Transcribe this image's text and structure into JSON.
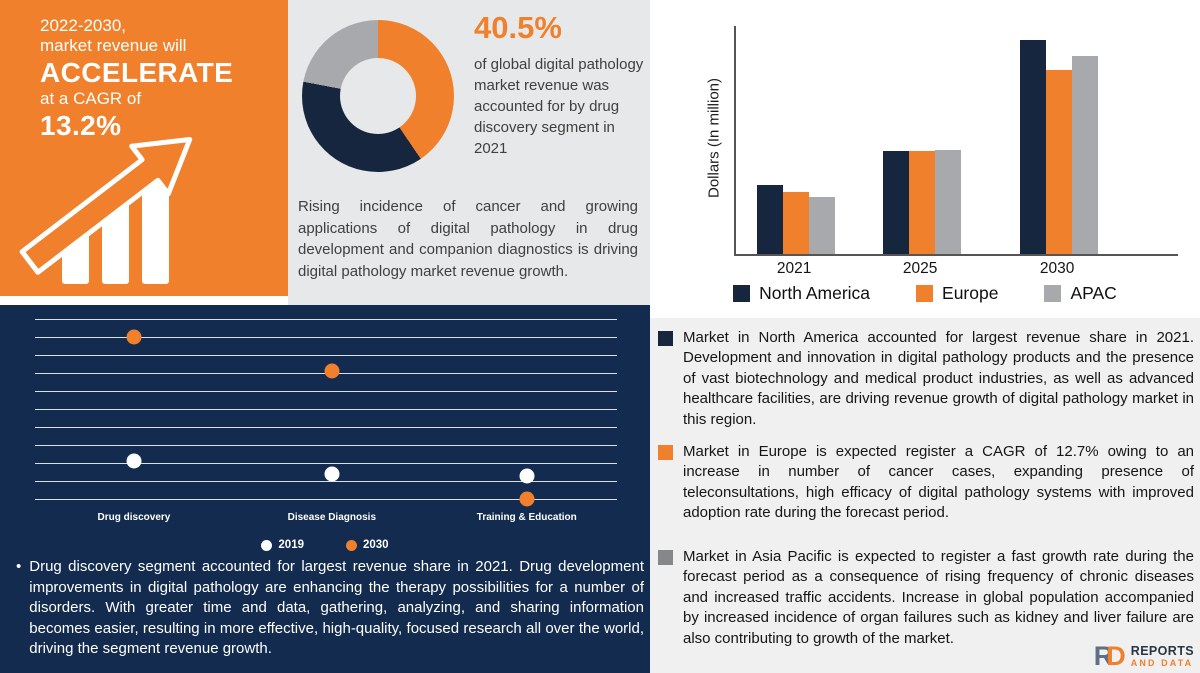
{
  "colors": {
    "orange": "#F0802B",
    "navy": "#16263E",
    "panel_navy": "#122B4E",
    "gray": "#A7A9AC",
    "gray_dark": "#85878B",
    "light_gray": "#E7E8E9",
    "panel_bottom_right": "#F0F0F1",
    "white": "#FFFFFF"
  },
  "top_left": {
    "line1": "2022-2030,",
    "line2": "market revenue will",
    "accelerate": "ACCELERATE",
    "line3": "at a CAGR of",
    "cagr": "13.2%"
  },
  "donut_section": {
    "stat": "40.5%",
    "stat_caption": "of global digital pathology market revenue was accounted for by drug discovery segment in 2021",
    "paragraph": "Rising incidence of cancer and growing applications of digital pathology in drug development and companion diagnostics is driving digital pathology market revenue growth."
  },
  "dot_section": {
    "bullet": "Drug discovery segment accounted for largest revenue share in 2021.  Drug development improvements in digital pathology are enhancing the therapy possibilities for a number of disorders. With greater time and data, gathering, analyzing, and sharing information becomes easier, resulting in more effective, high-quality, focused research all over the world, driving the segment revenue growth."
  },
  "right_bullets": [
    {
      "color_key": "navy",
      "text": "Market in North America accounted for largest revenue share in 2021. Development and innovation in digital pathology products and the presence of vast biotechnology and medical product industries, as well as advanced healthcare facilities, are driving revenue growth of digital pathology market in this region."
    },
    {
      "color_key": "orange",
      "text": "Market in Europe is expected register a CAGR of 12.7% owing to an increase in number of cancer cases, expanding presence of teleconsultations, high efficacy of digital pathology systems with improved adoption rate during the forecast period."
    },
    {
      "color_key": "gray_dark",
      "text": "Market in Asia Pacific is expected to register a fast growth rate during the forecast period as a consequence of rising frequency of chronic diseases and increased traffic accidents. Increase in global population accompanied by increased incidence of organ failures such as kidney and liver failure are also contributing to growth of the market."
    }
  ],
  "logo": {
    "mark_r": "R",
    "mark_d": "D",
    "line1": "REPORTS",
    "line2": "AND DATA"
  },
  "chart_data": [
    {
      "id": "segment-share-donut",
      "type": "pie",
      "donut": true,
      "slices": [
        {
          "label": "Drug discovery",
          "value": 40.5,
          "color_key": "orange"
        },
        {
          "label": "Unlabeled segment (navy)",
          "value": 37.5,
          "color_key": "navy"
        },
        {
          "label": "Unlabeled segment (gray)",
          "value": 22.0,
          "color_key": "gray"
        }
      ],
      "annotation": "40.5% of global digital pathology market revenue was accounted for by drug discovery segment in 2021",
      "note": "Only the 40.5% slice is labeled in the image; other slice values estimated from arc angles."
    },
    {
      "id": "regional-revenue-bars",
      "type": "bar",
      "ylabel": "Dollars (In million)",
      "categories": [
        "2021",
        "2025",
        "2030"
      ],
      "series": [
        {
          "name": "North America",
          "color_key": "navy",
          "values": [
            70,
            105,
            218
          ]
        },
        {
          "name": "Europe",
          "color_key": "orange",
          "values": [
            63,
            105,
            187
          ]
        },
        {
          "name": "APAC",
          "color_key": "gray",
          "values": [
            58,
            106,
            201
          ]
        }
      ],
      "ylim": [
        0,
        230
      ],
      "legend_position": "bottom",
      "grid": false,
      "note": "No numeric tick labels shown in image; values are relative estimates from bar heights."
    },
    {
      "id": "segment-growth-dots",
      "type": "scatter",
      "categories": [
        "Drug discovery",
        "Disease Diagnosis",
        "Training & Education"
      ],
      "series": [
        {
          "name": "2019",
          "color_key": "white",
          "values": [
            2.1,
            1.4,
            1.3
          ]
        },
        {
          "name": "2030",
          "color_key": "orange",
          "values": [
            9.0,
            7.1,
            0.0
          ]
        }
      ],
      "ylim": [
        0,
        10
      ],
      "gridlines": 11,
      "legend_position": "bottom",
      "note": "No numeric axis shown; values are relative gridline positions (0 = bottom line, 10 = top line)."
    }
  ]
}
